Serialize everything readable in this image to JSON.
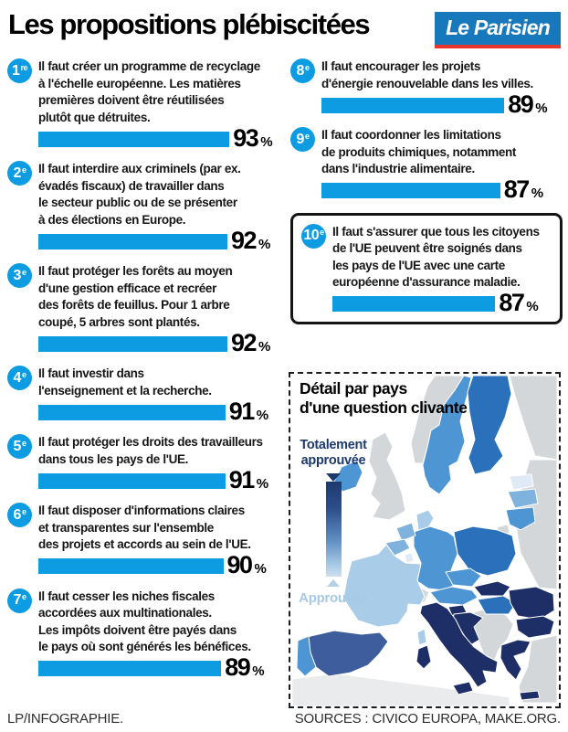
{
  "unit": "%",
  "header": {
    "title": "Les propositions plébiscitées",
    "logo_text": "Le Parisien"
  },
  "items": [
    {
      "rank": "1",
      "suffix": "re",
      "value": 93,
      "text": "Il faut créer un programme de recyclage\nà l'échelle européenne. Les matières\npremières doivent être réutilisées\nplutôt que détruites."
    },
    {
      "rank": "2",
      "suffix": "e",
      "value": 92,
      "text": "Il faut interdire aux criminels (par ex.\névadés fiscaux) de travailler dans\nle secteur public ou de se présenter\nà des élections en Europe."
    },
    {
      "rank": "3",
      "suffix": "e",
      "value": 92,
      "text": "Il faut protéger les forêts au moyen\nd'une gestion efficace et recréer\ndes forêts de feuillus. Pour 1 arbre\ncoupé, 5 arbres sont plantés."
    },
    {
      "rank": "4",
      "suffix": "e",
      "value": 91,
      "text": "Il faut investir dans\nl'enseignement et la recherche."
    },
    {
      "rank": "5",
      "suffix": "e",
      "value": 91,
      "text": "Il faut protéger les droits des travailleurs\ndans tous les pays de l'UE."
    },
    {
      "rank": "6",
      "suffix": "e",
      "value": 90,
      "text": "Il faut disposer d'informations claires\net transparentes sur l'ensemble\ndes projets et accords au sein de l'UE."
    },
    {
      "rank": "7",
      "suffix": "e",
      "value": 89,
      "text": "Il faut cesser les niches fiscales\naccordées aux multinationales.\nLes impôts doivent être payés dans\nle pays où sont générés les bénéfices."
    },
    {
      "rank": "8",
      "suffix": "e",
      "value": 89,
      "text": "Il faut encourager les projets\nd'énergie renouvelable dans les villes."
    },
    {
      "rank": "9",
      "suffix": "e",
      "value": 87,
      "text": "Il faut coordonner les limitations\nde produits chimiques, notamment\ndans l'industrie alimentaire."
    },
    {
      "rank": "10",
      "suffix": "e",
      "value": 87,
      "text": "Il faut s'assurer que tous les citoyens\nde l'UE peuvent être soignés dans\nles pays de l'UE avec une carte\neuropéenne d'assurance maladie."
    }
  ],
  "map": {
    "title": "Détail par pays\nd'une question clivante",
    "legend_top": "Totalement\napprouvée",
    "legend_bottom": "Approuvée",
    "shades": {
      "s1": "#dfeaf6",
      "s2": "#a9cde9",
      "s2m": "#7fb3de",
      "s3": "#4e95d3",
      "s4": "#2a70ba",
      "s5": "#3d5d9d",
      "s6": "#1d2f66",
      "noneu": "#d3d7da",
      "farland": "#e9ebec"
    },
    "countries": [
      {
        "id": "norway",
        "shade": "noneu"
      },
      {
        "id": "russia-north",
        "shade": "noneu"
      },
      {
        "id": "east-land",
        "shade": "noneu"
      },
      {
        "id": "uk",
        "shade": "noneu"
      },
      {
        "id": "switzerland",
        "shade": "noneu"
      },
      {
        "id": "balkans",
        "shade": "noneu"
      },
      {
        "id": "turkey",
        "shade": "noneu"
      },
      {
        "id": "kaliningrad",
        "shade": "noneu"
      },
      {
        "id": "north-africa",
        "shade": "farland"
      },
      {
        "id": "sweden",
        "shade": "s3"
      },
      {
        "id": "finland",
        "shade": "s4"
      },
      {
        "id": "estonia",
        "shade": "s1"
      },
      {
        "id": "latvia",
        "shade": "s2m"
      },
      {
        "id": "lithuania",
        "shade": "s3"
      },
      {
        "id": "poland",
        "shade": "s4"
      },
      {
        "id": "germany",
        "shade": "s3"
      },
      {
        "id": "denmark",
        "shade": "s2"
      },
      {
        "id": "netherlands",
        "shade": "s2m"
      },
      {
        "id": "belgium",
        "shade": "s2m"
      },
      {
        "id": "luxembourg",
        "shade": "s1"
      },
      {
        "id": "france",
        "shade": "s2"
      },
      {
        "id": "corsica",
        "shade": "s2"
      },
      {
        "id": "ireland",
        "shade": "s3"
      },
      {
        "id": "spain",
        "shade": "s5"
      },
      {
        "id": "portugal",
        "shade": "s3"
      },
      {
        "id": "italy",
        "shade": "s6"
      },
      {
        "id": "sardinia",
        "shade": "s6"
      },
      {
        "id": "sicily",
        "shade": "s6"
      },
      {
        "id": "czechia",
        "shade": "s3"
      },
      {
        "id": "slovakia",
        "shade": "s6"
      },
      {
        "id": "austria",
        "shade": "s3"
      },
      {
        "id": "hungary",
        "shade": "s4"
      },
      {
        "id": "slovenia",
        "shade": "s6"
      },
      {
        "id": "croatia",
        "shade": "s6"
      },
      {
        "id": "romania",
        "shade": "s6"
      },
      {
        "id": "bulgaria",
        "shade": "s6"
      },
      {
        "id": "greece",
        "shade": "s6"
      },
      {
        "id": "crete",
        "shade": "s6"
      }
    ]
  },
  "footer": {
    "left": "LP/INFOGRAPHIE.",
    "right": "SOURCES : CIVICO EUROPA, MAKE.ORG."
  },
  "colors": {
    "accent_blue": "#0d9ce1",
    "navy": "#1d3a6d",
    "legend_light": "#a7c9e5",
    "logo_blue": "#1878bc",
    "logo_red": "#e8362d"
  },
  "chart_data": {
    "type": "bar",
    "orientation": "horizontal",
    "title": "Les propositions plébiscitées",
    "unit": "%",
    "bar_color": "#0d9ce1",
    "ranks": [
      "1re",
      "2e",
      "3e",
      "4e",
      "5e",
      "6e",
      "7e",
      "8e",
      "9e",
      "10e"
    ],
    "categories": [
      "Il faut créer un programme de recyclage à l'échelle européenne. Les matières premières doivent être réutilisées plutôt que détruites.",
      "Il faut interdire aux criminels (par ex. évadés fiscaux) de travailler dans le secteur public ou de se présenter à des élections en Europe.",
      "Il faut protéger les forêts au moyen d'une gestion efficace et recréer des forêts de feuillus. Pour 1 arbre coupé, 5 arbres sont plantés.",
      "Il faut investir dans l'enseignement et la recherche.",
      "Il faut protéger les droits des travailleurs dans tous les pays de l'UE.",
      "Il faut disposer d'informations claires et transparentes sur l'ensemble des projets et accords au sein de l'UE.",
      "Il faut cesser les niches fiscales accordées aux multinationales. Les impôts doivent être payés dans le pays où sont générés les bénéfices.",
      "Il faut encourager les projets d'énergie renouvelable dans les villes.",
      "Il faut coordonner les limitations de produits chimiques, notamment dans l'industrie alimentaire.",
      "Il faut s'assurer que tous les citoyens de l'UE peuvent être soignés dans les pays de l'UE avec une carte européenne d'assurance maladie."
    ],
    "values": [
      93,
      92,
      92,
      91,
      91,
      90,
      89,
      89,
      87,
      87
    ],
    "legend": [
      "Totalement approuvée",
      "Approuvée"
    ],
    "map_subtitle": "Détail par pays d'une question clivante"
  }
}
